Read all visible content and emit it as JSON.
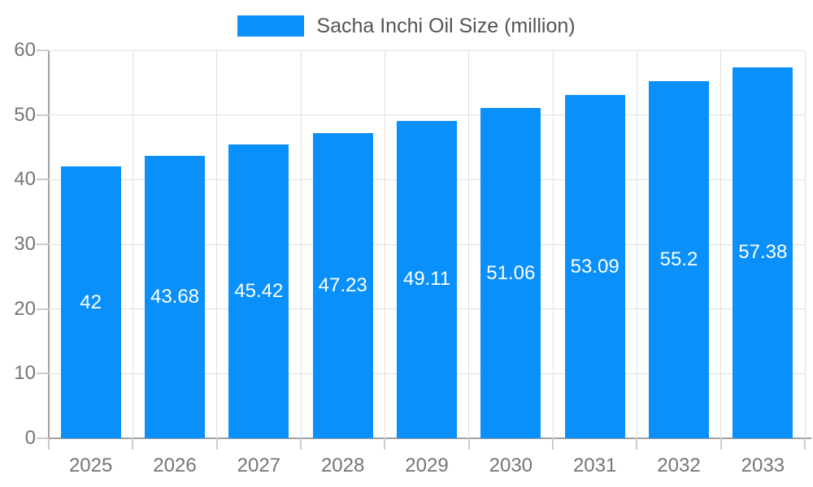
{
  "chart_data": {
    "type": "bar",
    "title": "Sacha Inchi Oil Size (million)",
    "legend": {
      "label": "Sacha Inchi Oil Size (million)",
      "position": "top-center"
    },
    "categories": [
      "2025",
      "2026",
      "2027",
      "2028",
      "2029",
      "2030",
      "2031",
      "2032",
      "2033"
    ],
    "series": [
      {
        "name": "Sacha Inchi Oil Size (million)",
        "values": [
          42,
          43.68,
          45.42,
          47.23,
          49.11,
          51.06,
          53.09,
          55.2,
          57.38
        ],
        "value_labels": [
          "42",
          "43.68",
          "45.42",
          "47.23",
          "49.11",
          "51.06",
          "53.09",
          "55.2",
          "57.38"
        ]
      }
    ],
    "xlabel": "",
    "ylabel": "",
    "ylim": [
      0,
      60
    ],
    "ytick_step": 10,
    "ytick_labels": [
      "0",
      "10",
      "20",
      "30",
      "40",
      "50",
      "60"
    ],
    "grid": "horizontal and vertical light gray gridlines",
    "value_label_position": "centered inside bar, white text"
  },
  "colors": {
    "bar": "#0a90fa",
    "grid": "#e0e0e0",
    "axis": "#a0a0a0",
    "tick": "#cccccc",
    "tick_label": "#757575",
    "legend_text": "#545454",
    "bar_value_text": "#ffffff",
    "background": "#ffffff"
  }
}
